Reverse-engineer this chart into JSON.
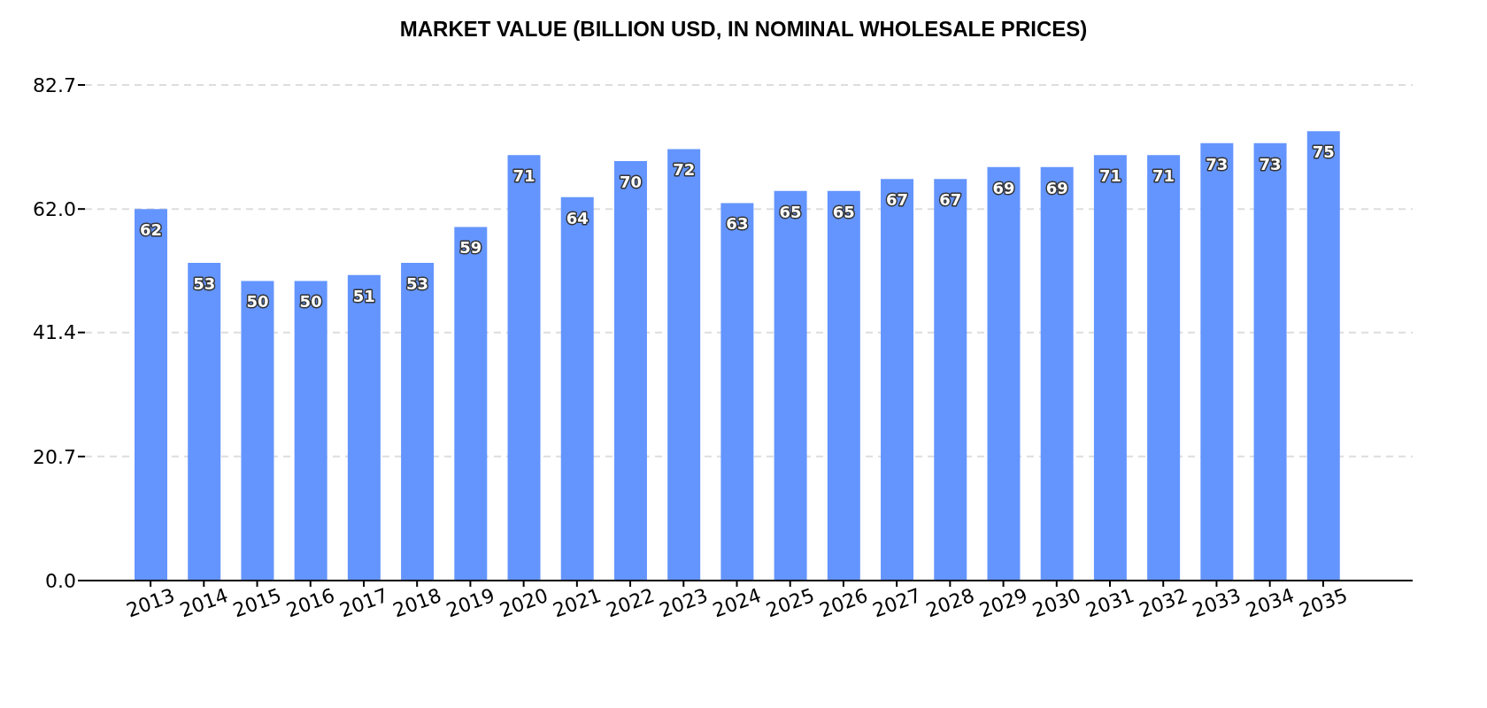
{
  "chart_data": {
    "type": "bar",
    "title": "MARKET VALUE (BILLION USD, IN NOMINAL WHOLESALE PRICES)",
    "categories": [
      "2013",
      "2014",
      "2015",
      "2016",
      "2017",
      "2018",
      "2019",
      "2020",
      "2021",
      "2022",
      "2023",
      "2024",
      "2025",
      "2026",
      "2027",
      "2028",
      "2029",
      "2030",
      "2031",
      "2032",
      "2033",
      "2034",
      "2035"
    ],
    "values": [
      62,
      53,
      50,
      50,
      51,
      53,
      59,
      71,
      64,
      70,
      72,
      63,
      65,
      65,
      67,
      67,
      69,
      69,
      71,
      71,
      73,
      73,
      75
    ],
    "color": "#6495fe",
    "ylim": [
      0,
      82.7
    ],
    "yticks": [
      {
        "value": 0,
        "label": "0.0"
      },
      20.7,
      41.4,
      {
        "value": 62,
        "label": "62.0"
      },
      82.7
    ],
    "grid": "y",
    "data_labels": true
  }
}
